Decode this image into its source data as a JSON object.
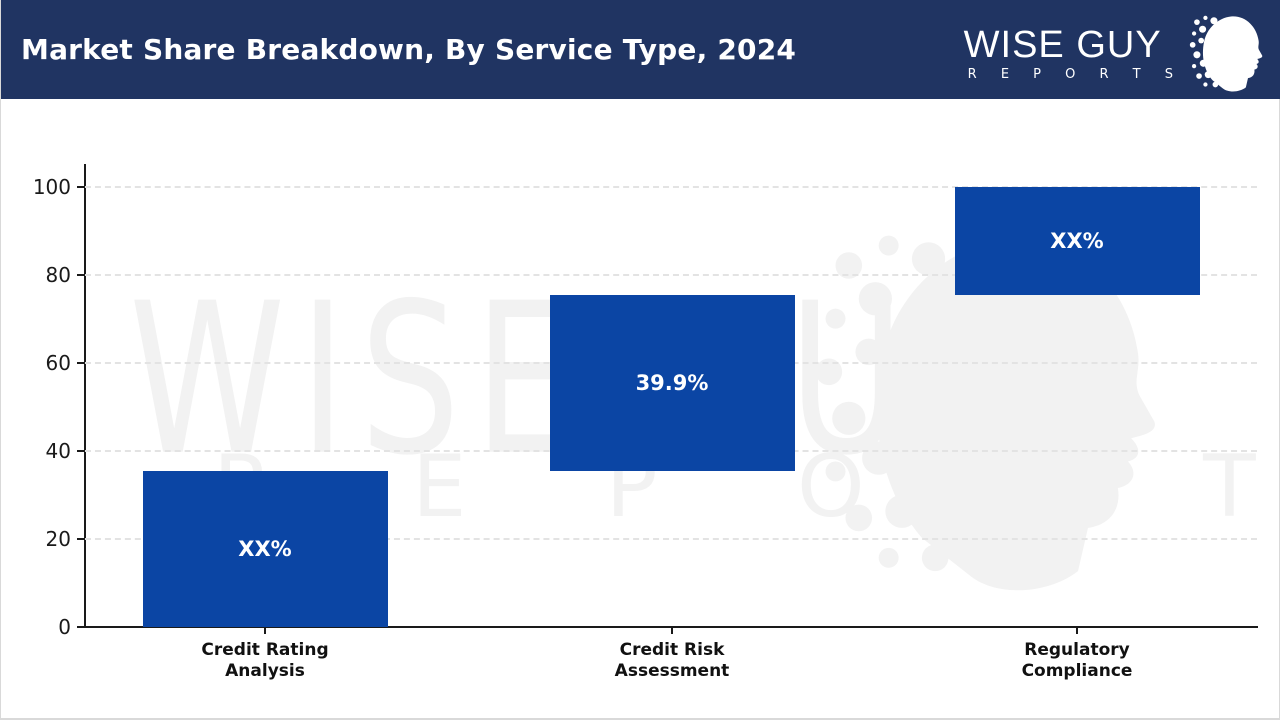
{
  "header": {
    "title": "Market Share Breakdown, By Service Type, 2024",
    "logo": {
      "wordmark": "WISE GUY",
      "subtext": "R E P O R T S"
    }
  },
  "watermark": {
    "wordmark": "WISE GUY",
    "subtext": "R E P O R T S"
  },
  "colors": {
    "header_bg": "#203462",
    "bar_fill": "#0b45a4",
    "bar_label": "#ffffff",
    "grid_line": "#e3e3e3",
    "axis_line": "#1a1a1a",
    "tick_label": "#1a1a1a",
    "watermark": "#f2f2f2"
  },
  "chart_data": {
    "type": "bar",
    "subtype": "floating-waterfall",
    "title": "Market Share Breakdown, By Service Type, 2024",
    "xlabel": "",
    "ylabel": "",
    "ylim": [
      0,
      100
    ],
    "yticks": [
      0,
      20,
      40,
      60,
      80,
      100
    ],
    "grid": "horizontal dashed",
    "legend": "none",
    "categories": [
      [
        "Credit Rating",
        "Analysis"
      ],
      [
        "Credit Risk",
        "Assessment"
      ],
      [
        "Regulatory",
        "Compliance"
      ]
    ],
    "segments": [
      {
        "category": "Credit Rating Analysis",
        "start": 0,
        "end": 35.5,
        "value_label": "XX%"
      },
      {
        "category": "Credit Risk Assessment",
        "start": 35.5,
        "end": 75.4,
        "value": 39.9,
        "value_label": "39.9%"
      },
      {
        "category": "Regulatory Compliance",
        "start": 75.4,
        "end": 100,
        "value_label": "XX%"
      }
    ]
  }
}
